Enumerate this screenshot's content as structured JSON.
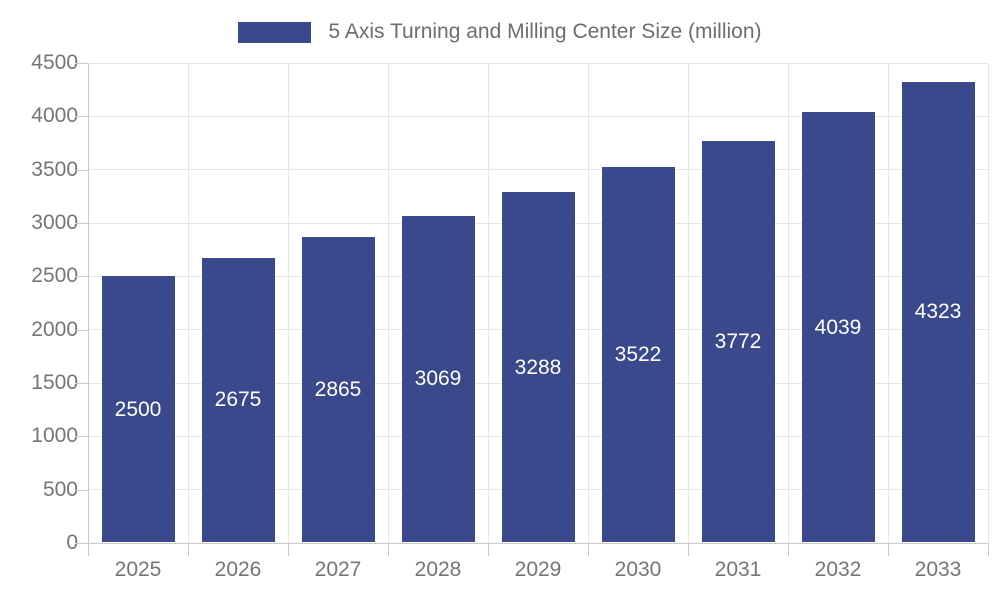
{
  "chart_data": {
    "type": "bar",
    "title": "",
    "legend": "5 Axis Turning and Milling Center Size (million)",
    "legend_position": "top",
    "categories": [
      "2025",
      "2026",
      "2027",
      "2028",
      "2029",
      "2030",
      "2031",
      "2032",
      "2033"
    ],
    "series": [
      {
        "name": "5 Axis Turning and Milling Center Size (million)",
        "values": [
          2500,
          2675,
          2865,
          3069,
          3288,
          3522,
          3772,
          4039,
          4323
        ]
      }
    ],
    "xlabel": "",
    "ylabel": "",
    "ylim": [
      0,
      4500
    ],
    "ytick_step": 500,
    "grid": true,
    "value_labels": "inside-center",
    "colors": {
      "bar": "#39498B",
      "value_label": "#FFFFFF",
      "axis_label": "#757575",
      "legend_text": "#6D6D6D",
      "gridline": "#E6E6E6",
      "axis_line": "#C9C9C9",
      "background": "#FFFFFF"
    }
  }
}
